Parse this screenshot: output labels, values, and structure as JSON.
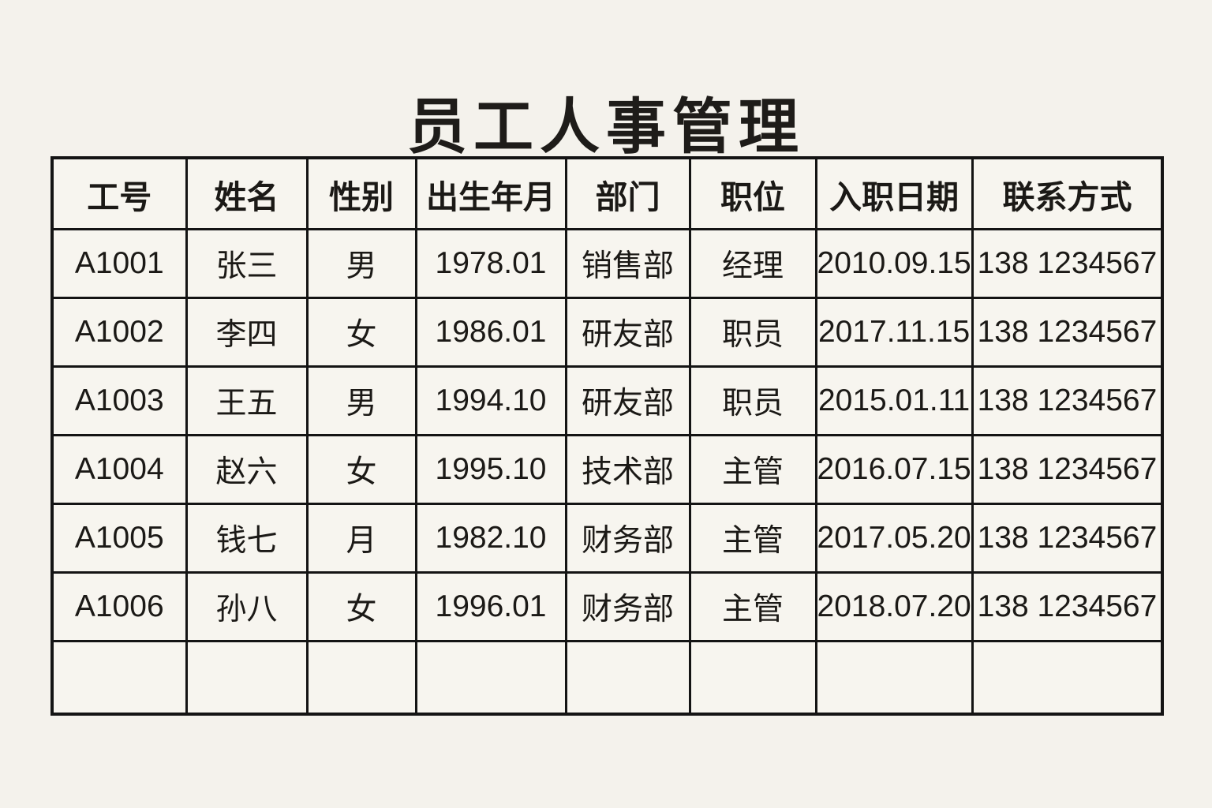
{
  "page": {
    "title": "员工人事管理",
    "background_color": "#f4f2ec",
    "border_color": "#141414",
    "text_color": "#1b1916"
  },
  "table": {
    "headers": [
      "工号",
      "姓名",
      "性别",
      "出生年月",
      "部门",
      "职位",
      "入职日期",
      "联系方式"
    ],
    "rows": [
      [
        "A1001",
        "张三",
        "男",
        "1978.01",
        "销售部",
        "经理",
        "2010.09.15",
        "138 1234567"
      ],
      [
        "A1002",
        "李四",
        "女",
        "1986.01",
        "研友部",
        "职员",
        "2017.11.15",
        "138 1234567"
      ],
      [
        "A1003",
        "王五",
        "男",
        "1994.10",
        "研友部",
        "职员",
        "2015.01.11",
        "138 1234567"
      ],
      [
        "A1004",
        "赵六",
        "女",
        "1995.10",
        "技术部",
        "主管",
        "2016.07.15",
        "138 1234567"
      ],
      [
        "A1005",
        "钱七",
        "月",
        "1982.10",
        "财务部",
        "主管",
        "2017.05.20",
        "138 1234567"
      ],
      [
        "A1006",
        "孙八",
        "女",
        "1996.01",
        "财务部",
        "主管",
        "2018.07.20",
        "138 1234567"
      ],
      [
        "",
        "",
        "",
        "",
        "",
        "",
        "",
        ""
      ]
    ]
  }
}
